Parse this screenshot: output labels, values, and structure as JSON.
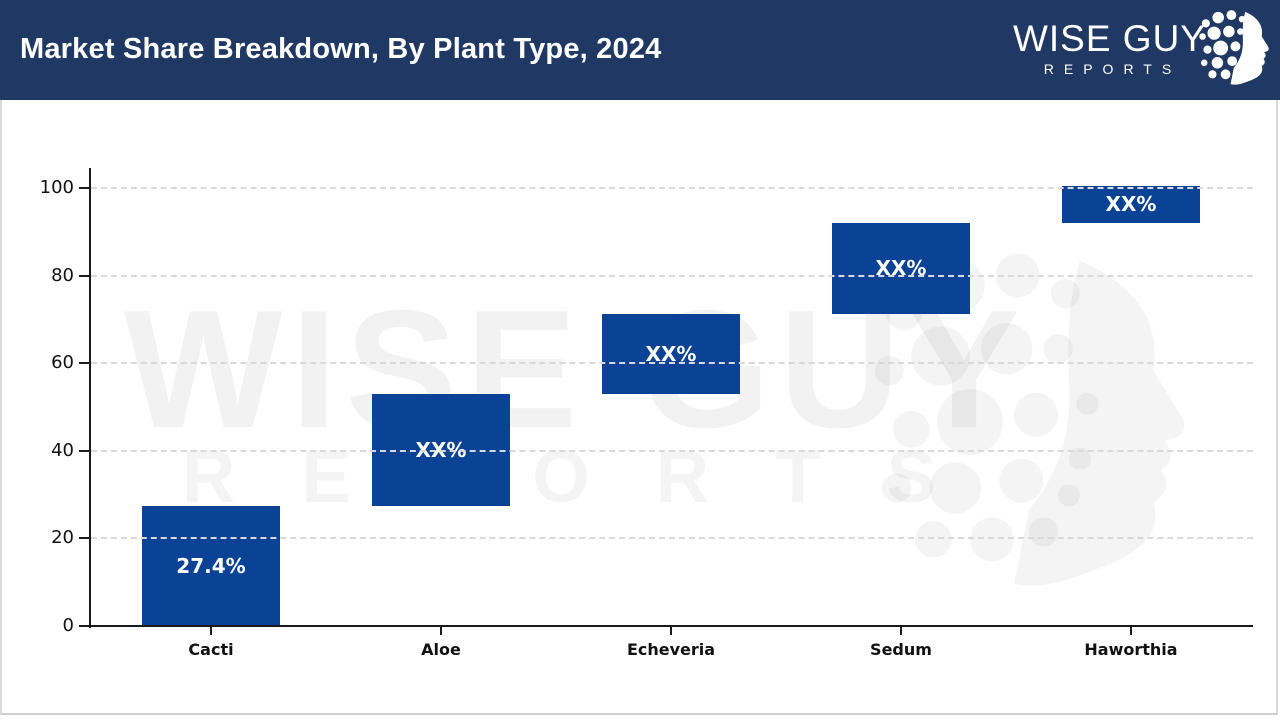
{
  "header": {
    "title": "Market Share Breakdown, By Plant Type, 2024",
    "logo": {
      "wordmark": "WISE GUY",
      "subtext": "REPORTS"
    }
  },
  "watermark": {
    "wordmark": "WISE GUY",
    "subtext": "REPORTS"
  },
  "colors": {
    "header_bg": "#1f3864",
    "bar_fill": "#0a4296",
    "bar_label_text": "#ffffff",
    "grid_line": "#d9d9d9",
    "axis_line": "#1a1a1a",
    "tick_label_text": "#111111"
  },
  "chart_data": {
    "type": "bar",
    "variant": "waterfall",
    "title": "Market Share Breakdown, By Plant Type, 2024",
    "xlabel": "",
    "ylabel": "",
    "categories": [
      "Cacti",
      "Aloe",
      "Echeveria",
      "Sedum",
      "Haworthia"
    ],
    "segments": [
      {
        "category": "Cacti",
        "label": "27.4%",
        "start": 0,
        "end": 27.4
      },
      {
        "category": "Aloe",
        "label": "XX%",
        "start": 27.4,
        "end": 53.0
      },
      {
        "category": "Echeveria",
        "label": "XX%",
        "start": 53.0,
        "end": 71.3
      },
      {
        "category": "Sedum",
        "label": "XX%",
        "start": 71.3,
        "end": 92.1
      },
      {
        "category": "Haworthia",
        "label": "XX%",
        "start": 92.1,
        "end": 100.5
      }
    ],
    "yticks": [
      0,
      20,
      40,
      60,
      80,
      100
    ],
    "ylim": [
      0,
      105
    ],
    "grid": "horizontal-dashed",
    "legend": "none"
  }
}
